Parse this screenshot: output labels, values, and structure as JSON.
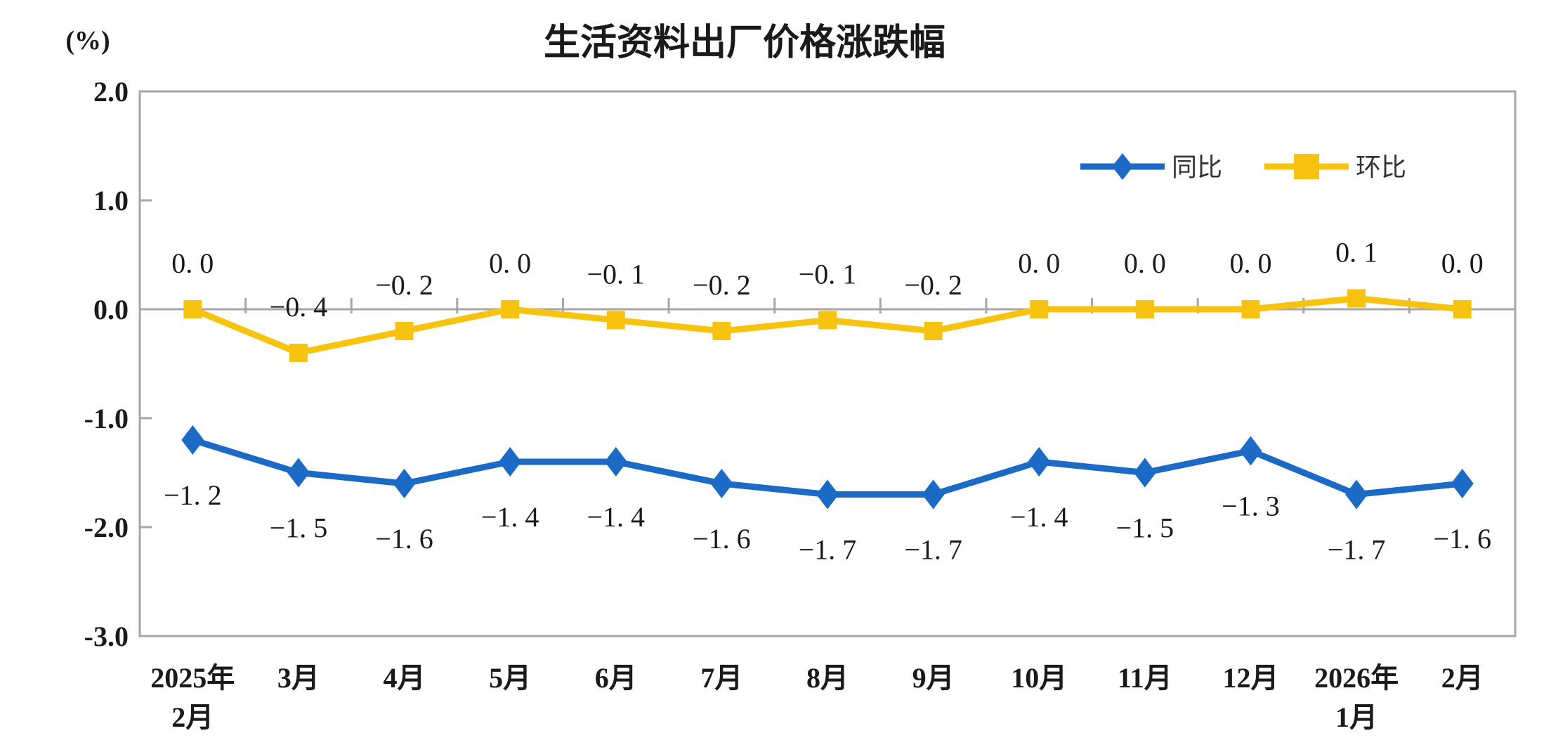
{
  "chart_data": {
    "type": "line",
    "title": "生活资料出厂价格涨跌幅",
    "unit_label": "(%)",
    "xlabel": "",
    "ylabel": "",
    "ylim": [
      -3.0,
      2.0
    ],
    "yticks": [
      2.0,
      1.0,
      0.0,
      -1.0,
      -2.0,
      -3.0
    ],
    "ytick_labels": [
      "2.0",
      "1.0",
      "0.0",
      "-1.0",
      "-2.0",
      "-3.0"
    ],
    "grid": false,
    "legend_position": "top-right",
    "axis_color": "#A6A6A6",
    "text_color": "#1A1A1A",
    "background_color": "#FFFFFF",
    "categories": [
      {
        "label": "2025年",
        "sublabel": "2月"
      },
      {
        "label": "3月",
        "sublabel": ""
      },
      {
        "label": "4月",
        "sublabel": ""
      },
      {
        "label": "5月",
        "sublabel": ""
      },
      {
        "label": "6月",
        "sublabel": ""
      },
      {
        "label": "7月",
        "sublabel": ""
      },
      {
        "label": "8月",
        "sublabel": ""
      },
      {
        "label": "9月",
        "sublabel": ""
      },
      {
        "label": "10月",
        "sublabel": ""
      },
      {
        "label": "11月",
        "sublabel": ""
      },
      {
        "label": "12月",
        "sublabel": ""
      },
      {
        "label": "2026年",
        "sublabel": "1月"
      },
      {
        "label": "2月",
        "sublabel": ""
      }
    ],
    "series": [
      {
        "name": "同比",
        "color": "#1B6AC6",
        "marker": "diamond",
        "label_position": "below",
        "values": [
          -1.2,
          -1.5,
          -1.6,
          -1.4,
          -1.4,
          -1.6,
          -1.7,
          -1.7,
          -1.4,
          -1.5,
          -1.3,
          -1.7,
          -1.6
        ]
      },
      {
        "name": "环比",
        "color": "#F7C30E",
        "marker": "square",
        "label_position": "above",
        "values": [
          0.0,
          -0.4,
          -0.2,
          0.0,
          -0.1,
          -0.2,
          -0.1,
          -0.2,
          0.0,
          0.0,
          0.0,
          0.1,
          0.0
        ]
      }
    ]
  }
}
